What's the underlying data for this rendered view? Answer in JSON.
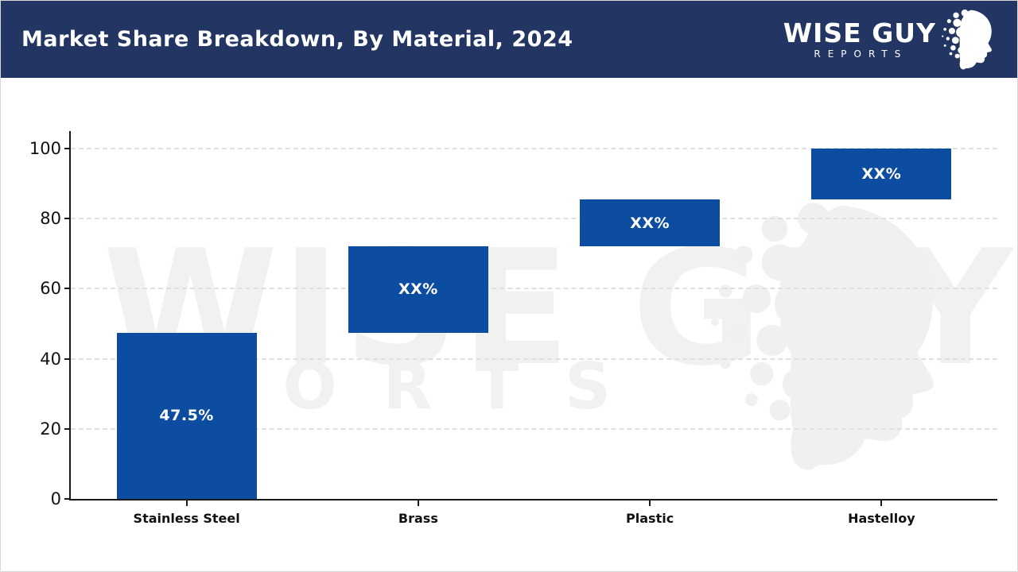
{
  "header": {
    "title": "Market Share Breakdown, By Material, 2024",
    "logo": {
      "line1": "WISE GUY",
      "line2": "REPORTS"
    }
  },
  "watermark": {
    "line1": "WISE GUY",
    "line2": "PORTS"
  },
  "colors": {
    "header_bg": "#223563",
    "bar": "#0d4da1",
    "bar_label": "#ffffff",
    "watermark": "#f1f1f1"
  },
  "chart_data": {
    "type": "bar",
    "subtype": "waterfall",
    "title": "Market Share Breakdown, By Material, 2024",
    "categories": [
      "Stainless Steel",
      "Brass",
      "Plastic",
      "Hastelloy"
    ],
    "segments": [
      {
        "category": "Stainless Steel",
        "start": 0,
        "end": 47.5,
        "label": "47.5%"
      },
      {
        "category": "Brass",
        "start": 47.5,
        "end": 72,
        "label": "XX%"
      },
      {
        "category": "Plastic",
        "start": 72,
        "end": 85.5,
        "label": "XX%"
      },
      {
        "category": "Hastelloy",
        "start": 85.5,
        "end": 100,
        "label": "XX%"
      }
    ],
    "xlabel": "",
    "ylabel": "",
    "ylim": [
      0,
      100
    ],
    "yticks": [
      0,
      20,
      40,
      60,
      80,
      100
    ],
    "grid": "horizontal-dashed",
    "legend": "none"
  }
}
